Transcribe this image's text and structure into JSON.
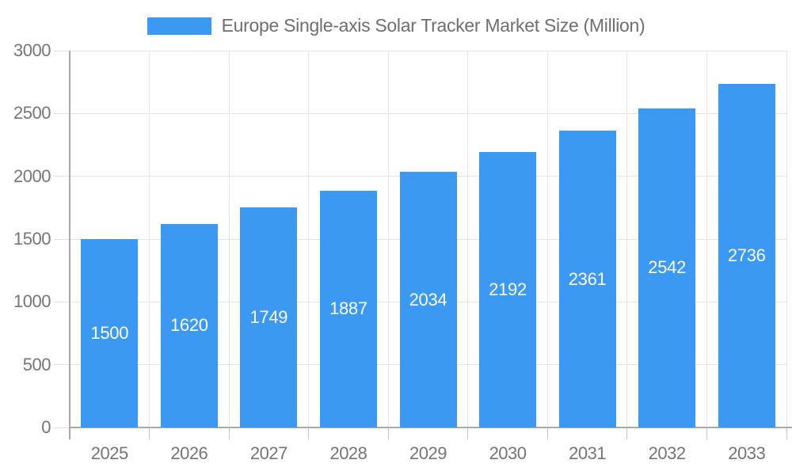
{
  "legend": {
    "label": "Europe Single-axis Solar Tracker Market Size (Million)",
    "swatch_color": "#3b99f2"
  },
  "chart_data": {
    "type": "bar",
    "title": "Europe Single-axis Solar Tracker Market Size (Million)",
    "series_name": "Europe Single-axis Solar Tracker Market Size (Million)",
    "categories": [
      "2025",
      "2026",
      "2027",
      "2028",
      "2029",
      "2030",
      "2031",
      "2032",
      "2033"
    ],
    "values": [
      1500,
      1620,
      1749,
      1887,
      2034,
      2192,
      2361,
      2542,
      2736
    ],
    "xlabel": "",
    "ylabel": "",
    "ylim": [
      0,
      3000
    ],
    "yticks": [
      0,
      500,
      1000,
      1500,
      2000,
      2500,
      3000
    ],
    "grid": true,
    "legend_position": "top-center",
    "bar_color": "#3b99f2",
    "bar_label_color": "#ffffff",
    "axis_text_color": "#757575",
    "grid_color": "#e4e4e4",
    "axis_line_color": "#a9a9a9"
  }
}
